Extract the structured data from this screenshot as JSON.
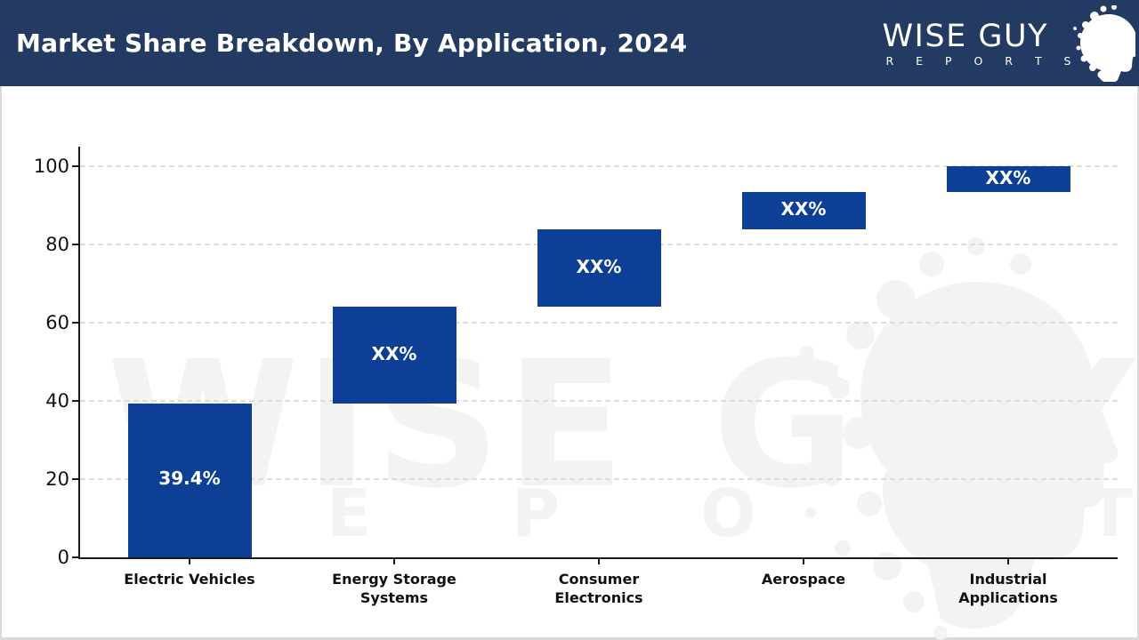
{
  "header": {
    "title": "Market Share Breakdown, By Application, 2024",
    "bg_color": "#233a63",
    "logo_line1": "WISE GUY",
    "logo_line2": "R E P O R T S"
  },
  "watermark": {
    "line1": "WISE GUY",
    "line2": "R E P O R T S"
  },
  "chart_data": {
    "type": "bar",
    "subtype": "waterfall",
    "title": "Market Share Breakdown, By Application, 2024",
    "categories": [
      "Electric Vehicles",
      "Energy Storage\nSystems",
      "Consumer\nElectronics",
      "Aerospace",
      "Industrial\nApplications"
    ],
    "segments": [
      {
        "category": "Electric Vehicles",
        "start": 0,
        "end": 39.4,
        "label": "39.4%"
      },
      {
        "category": "Energy Storage Systems",
        "start": 39.4,
        "end": 64.0,
        "label": "XX%"
      },
      {
        "category": "Consumer Electronics",
        "start": 64.0,
        "end": 83.8,
        "label": "XX%"
      },
      {
        "category": "Aerospace",
        "start": 83.8,
        "end": 93.4,
        "label": "XX%"
      },
      {
        "category": "Industrial Applications",
        "start": 93.4,
        "end": 100.0,
        "label": "XX%"
      }
    ],
    "ylim": [
      0,
      100
    ],
    "yticks": [
      0,
      20,
      40,
      60,
      80,
      100
    ],
    "grid": "horizontal-dashed",
    "legend": "none",
    "xlabel": "",
    "ylabel": "",
    "bar_color": "#0d3f96",
    "bar_label_color": "#ffffff",
    "axis_color": "#1a1a1a",
    "gridline_color": "#dcdcdc"
  }
}
